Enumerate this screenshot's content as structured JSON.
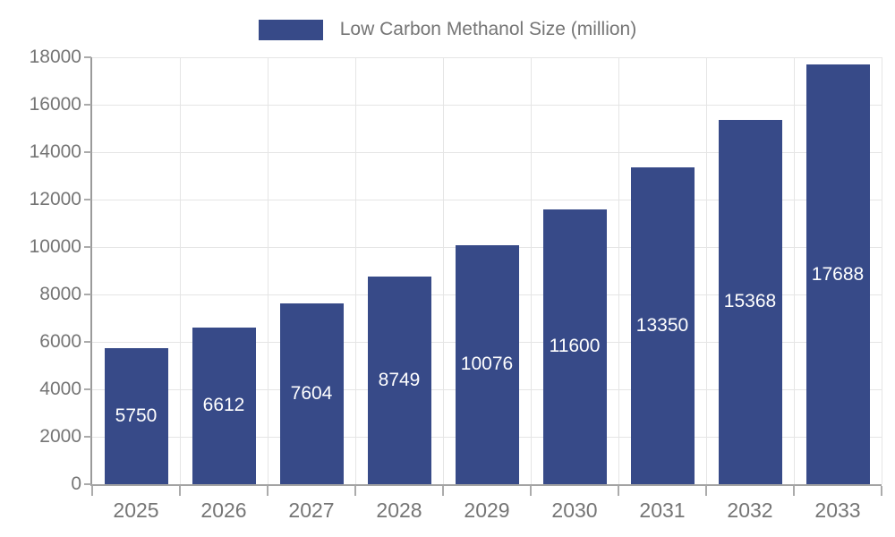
{
  "chart_data": {
    "type": "bar",
    "title": "",
    "legend": "Low Carbon Methanol Size (million)",
    "legend_position": "top-center",
    "categories": [
      "2025",
      "2026",
      "2027",
      "2028",
      "2029",
      "2030",
      "2031",
      "2032",
      "2033"
    ],
    "series": [
      {
        "name": "Low Carbon Methanol Size (million)",
        "values": [
          5750,
          6612,
          7604,
          8749,
          10076,
          11600,
          13350,
          15368,
          17688
        ]
      }
    ],
    "bar_value_labels": [
      "5750",
      "6612",
      "7604",
      "8749",
      "10076",
      "11600",
      "13350",
      "15368",
      "17688"
    ],
    "xlabel": "",
    "ylabel": "",
    "ylim": [
      0,
      18000
    ],
    "ytick_step": 2000,
    "ytick_labels": [
      "0",
      "2000",
      "4000",
      "6000",
      "8000",
      "10000",
      "12000",
      "14000",
      "16000",
      "18000"
    ],
    "grid": true
  },
  "colors": {
    "bar": "#374a88",
    "bar_label": "#ffffff",
    "axis_text": "#757575",
    "axis_line": "#9a9a9a",
    "tick": "#ababab",
    "gridline": "#e5e5e5",
    "background": "#ffffff"
  }
}
